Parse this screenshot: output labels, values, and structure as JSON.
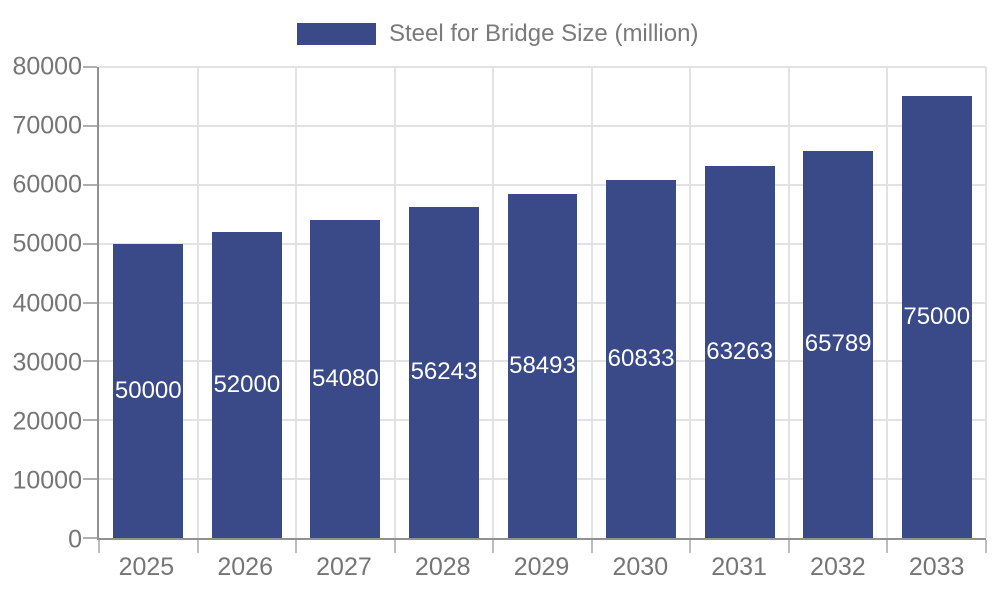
{
  "legend": {
    "label": "Steel for Bridge Size (million)"
  },
  "chart_data": {
    "type": "bar",
    "title": "",
    "series_name": "Steel for Bridge Size (million)",
    "categories": [
      "2025",
      "2026",
      "2027",
      "2028",
      "2029",
      "2030",
      "2031",
      "2032",
      "2033"
    ],
    "values": [
      50000,
      52000,
      54080,
      56243,
      58493,
      60833,
      63263,
      65789,
      75000
    ],
    "value_labels": [
      "50000",
      "52000",
      "54080",
      "56243",
      "58493",
      "60833",
      "63263",
      "65789",
      "75000"
    ],
    "xlabel": "",
    "ylabel": "",
    "ylim": [
      0,
      80000
    ],
    "ytick_step": 10000,
    "y_tick_labels": [
      "0",
      "10000",
      "20000",
      "30000",
      "40000",
      "50000",
      "60000",
      "70000",
      "80000"
    ],
    "grid": true,
    "legend_position": "top-center",
    "colors": {
      "bar": "#3A4A88",
      "grid": "#e2e2e2",
      "axis": "#919191",
      "tick": "#b0b0b0",
      "axis_text": "#757575",
      "bar_label_text": "#ffffff",
      "legend_text": "#7a7a7a",
      "background": "#ffffff"
    }
  }
}
